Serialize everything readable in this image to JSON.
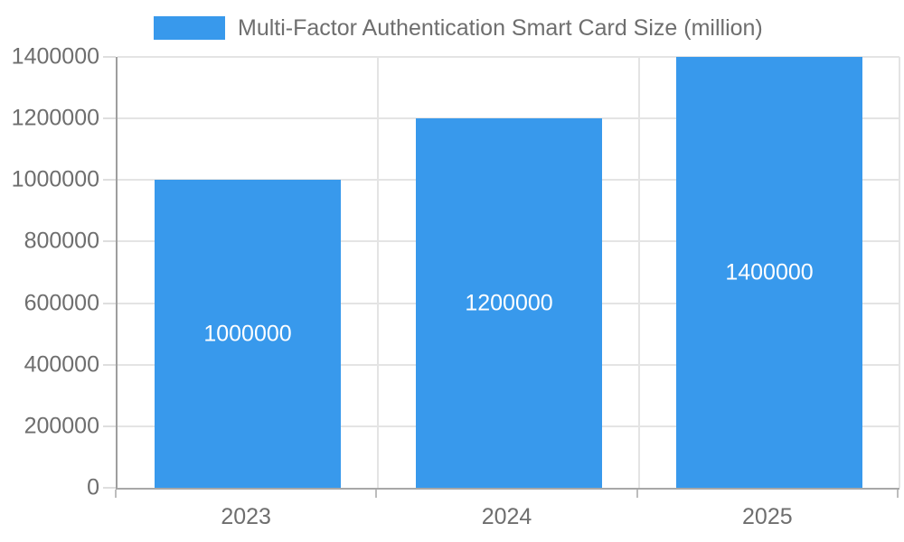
{
  "chart_data": {
    "type": "bar",
    "title": "Multi-Factor Authentication Smart Card Size (million)",
    "categories": [
      "2023",
      "2024",
      "2025"
    ],
    "values": [
      1000000,
      1200000,
      1400000
    ],
    "data_labels": [
      "1000000",
      "1200000",
      "1400000"
    ],
    "xlabel": "",
    "ylabel": "",
    "ylim": [
      0,
      1400000
    ],
    "ytick_step": 200000,
    "yticks": [
      0,
      200000,
      400000,
      600000,
      800000,
      1000000,
      1200000,
      1400000
    ],
    "grid": "on",
    "legend_position": "top",
    "bar_color": "#3899ec",
    "label_color": "#ffffff",
    "axis_text_color": "#6e6e6e"
  }
}
